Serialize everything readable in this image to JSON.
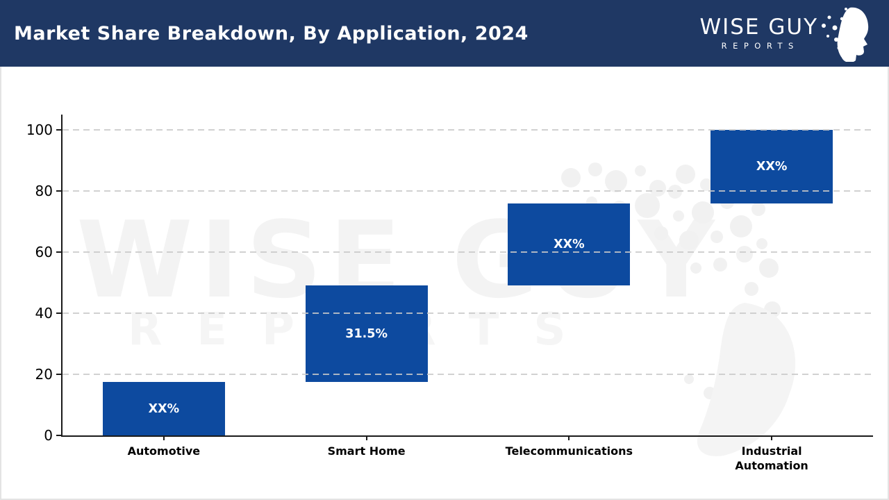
{
  "header": {
    "title": "Market Share Breakdown, By Application, 2024",
    "bg_color": "#1f3864",
    "logo": {
      "name": "WISE GUY",
      "subtitle": "REPORTS"
    }
  },
  "watermark": {
    "name": "WISE GUY",
    "subtitle": "REPORTS"
  },
  "chart_data": {
    "type": "bar",
    "variant": "waterfall",
    "title": "Market Share Breakdown, By Application, 2024",
    "categories": [
      "Automotive",
      "Smart Home",
      "Telecommunications",
      "Industrial Automation"
    ],
    "categories_display": [
      "Automotive",
      "Smart Home",
      "Telecommunications",
      "Industrial\nAutomation"
    ],
    "segments": [
      {
        "category": "Automotive",
        "start": 0,
        "end": 17.5,
        "size": 17.5,
        "label": "XX%"
      },
      {
        "category": "Smart Home",
        "start": 17.5,
        "end": 49,
        "size": 31.5,
        "label": "31.5%"
      },
      {
        "category": "Telecommunications",
        "start": 49,
        "end": 76,
        "size": 27,
        "label": "XX%"
      },
      {
        "category": "Industrial Automation",
        "start": 76,
        "end": 100,
        "size": 24,
        "label": "XX%"
      }
    ],
    "yticks": [
      0,
      20,
      40,
      60,
      80,
      100
    ],
    "ylim": [
      0,
      105
    ],
    "xlabel": "",
    "ylabel": "",
    "legend": null,
    "grid": {
      "axis": "y",
      "style": "dashed",
      "color": "#c9c9c9",
      "above_bars": true
    },
    "colors": {
      "bar": "#0d4a9f",
      "bar_label": "#ffffff",
      "axis": "#1a1a1a",
      "tick_label": "#000000"
    }
  }
}
